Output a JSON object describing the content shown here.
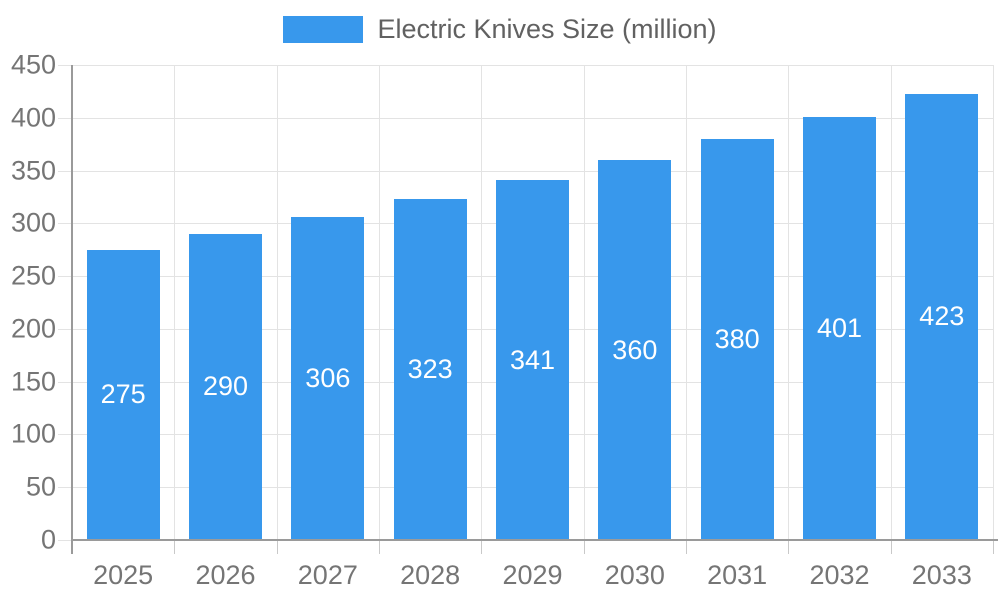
{
  "chart_data": {
    "type": "bar",
    "title": "Electric Knives Size (million)",
    "legend": [
      "Electric Knives Size (million)"
    ],
    "legend_position": "top-center",
    "categories": [
      "2025",
      "2026",
      "2027",
      "2028",
      "2029",
      "2030",
      "2031",
      "2032",
      "2033"
    ],
    "series": [
      {
        "name": "Electric Knives Size (million)",
        "values": [
          275,
          290,
          306,
          323,
          341,
          360,
          380,
          401,
          423
        ]
      }
    ],
    "values": [
      275,
      290,
      306,
      323,
      341,
      360,
      380,
      401,
      423
    ],
    "value_labels": [
      "275",
      "290",
      "306",
      "323",
      "341",
      "360",
      "380",
      "401",
      "423"
    ],
    "xlabel": "",
    "ylabel": "",
    "ylim": [
      0,
      450
    ],
    "yticks": [
      0,
      50,
      100,
      150,
      200,
      250,
      300,
      350,
      400,
      450
    ],
    "grid": true
  },
  "colors": {
    "bar": "#3898EC",
    "grid": "#E3E3E3",
    "axis": "#9A9A9A",
    "tick": "#C9C9C9",
    "tick_label": "#757575",
    "legend_text": "#616161",
    "value_label": "#FFFFFF",
    "background": "#FFFFFF"
  }
}
